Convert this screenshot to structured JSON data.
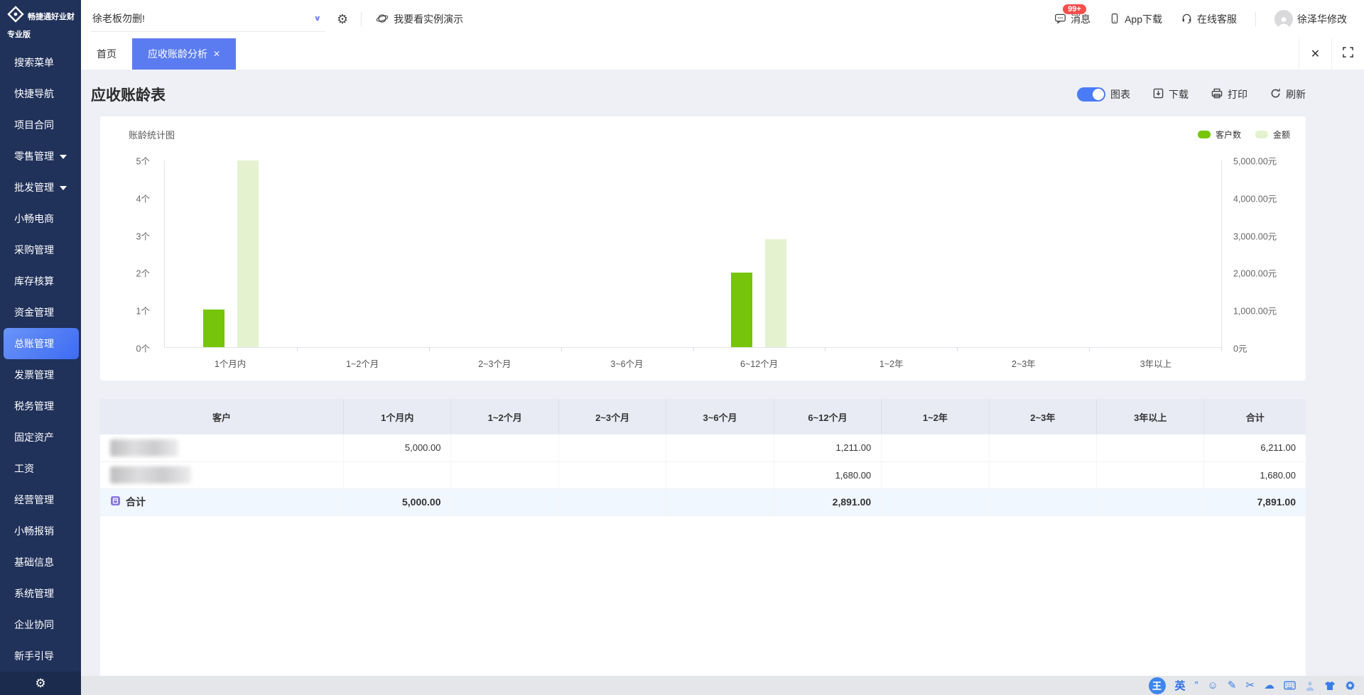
{
  "sidebar": {
    "logo_title": "畅捷通好业财",
    "logo_subtitle": "专业版",
    "items": [
      {
        "label": "搜索菜单"
      },
      {
        "label": "快捷导航"
      },
      {
        "label": "项目合同"
      },
      {
        "label": "零售管理",
        "has_caret": true
      },
      {
        "label": "批发管理",
        "has_caret": true
      },
      {
        "label": "小畅电商"
      },
      {
        "label": "采购管理"
      },
      {
        "label": "库存核算"
      },
      {
        "label": "资金管理"
      },
      {
        "label": "总账管理",
        "active": true
      },
      {
        "label": "发票管理"
      },
      {
        "label": "税务管理"
      },
      {
        "label": "固定资产"
      },
      {
        "label": "工资"
      },
      {
        "label": "经营管理"
      },
      {
        "label": "小畅报销"
      },
      {
        "label": "基础信息"
      },
      {
        "label": "系统管理"
      },
      {
        "label": "企业协同"
      },
      {
        "label": "新手引导"
      }
    ]
  },
  "topbar": {
    "account_selector": "徐老板勿删!",
    "demo_link": "我要看实例演示",
    "messages_label": "消息",
    "messages_badge": "99+",
    "app_download_label": "App下载",
    "support_label": "在线客服",
    "username": "徐泽华修改"
  },
  "tabs": {
    "items": [
      {
        "label": "首页",
        "active": false,
        "closable": false
      },
      {
        "label": "应收账龄分析",
        "active": true,
        "closable": true
      }
    ]
  },
  "page": {
    "title": "应收账龄表",
    "toolbar": {
      "chart_toggle_label": "图表",
      "download_label": "下载",
      "print_label": "打印",
      "refresh_label": "刷新"
    }
  },
  "chart_data": {
    "type": "bar",
    "title": "账龄统计图",
    "categories": [
      "1个月内",
      "1~2个月",
      "2~3个月",
      "3~6个月",
      "6~12个月",
      "1~2年",
      "2~3年",
      "3年以上"
    ],
    "series": [
      {
        "name": "客户数",
        "axis": "left",
        "color": "#76C50A",
        "values": [
          1,
          0,
          0,
          0,
          2,
          0,
          0,
          0
        ]
      },
      {
        "name": "金额",
        "axis": "right",
        "color": "#E5F2CF",
        "values": [
          5000,
          0,
          0,
          0,
          2891,
          0,
          0,
          0
        ]
      }
    ],
    "left_axis": {
      "ticks": [
        "0个",
        "1个",
        "2个",
        "3个",
        "4个",
        "5个"
      ],
      "min": 0,
      "max": 5
    },
    "right_axis": {
      "ticks": [
        "0元",
        "1,000.00元",
        "2,000.00元",
        "3,000.00元",
        "4,000.00元",
        "5,000.00元"
      ],
      "min": 0,
      "max": 5000
    },
    "legend_position": "top-right",
    "grid": false
  },
  "table": {
    "headers": [
      "客户",
      "1个月内",
      "1~2个月",
      "2~3个月",
      "3~6个月",
      "6~12个月",
      "1~2年",
      "2~3年",
      "3年以上",
      "合计"
    ],
    "rows": [
      {
        "customer_redacted": true,
        "values": [
          "5,000.00",
          "",
          "",
          "",
          "1,211.00",
          "",
          "",
          "",
          "6,211.00"
        ]
      },
      {
        "customer_redacted": true,
        "values": [
          "",
          "",
          "",
          "",
          "1,680.00",
          "",
          "",
          "",
          "1,680.00"
        ]
      }
    ],
    "total_row": {
      "label": "合计",
      "values": [
        "5,000.00",
        "",
        "",
        "",
        "2,891.00",
        "",
        "",
        "",
        "7,891.00"
      ]
    }
  },
  "taskbar": {
    "ime_badge": "王",
    "ime_lang": "英",
    "icons": [
      "quote-icon",
      "smiley-icon",
      "pen-icon",
      "scissors-icon",
      "cloud-icon",
      "keyboard-icon",
      "person-icon",
      "shirt-icon",
      "gear-icon"
    ],
    "glyphs": {
      "quote": "”",
      "smiley": "☺",
      "pen": "✎",
      "scissors": "✂",
      "cloud": "☁"
    }
  },
  "icons": {
    "gear": "⚙",
    "close": "✕",
    "tab_close": "✕",
    "chevron_down": "∨"
  }
}
